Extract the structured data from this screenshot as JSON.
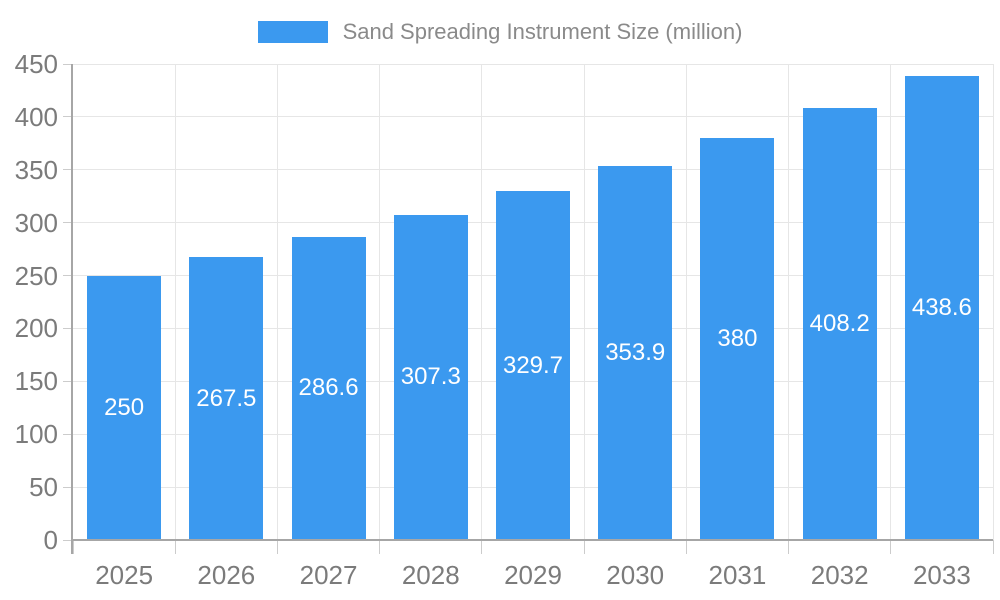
{
  "legend": {
    "label": "Sand Spreading Instrument Size (million)"
  },
  "colors": {
    "bar": "#3b99ef",
    "grid": "#e6e6e6",
    "axis": "#a6a6a6",
    "tick": "#cccccc",
    "axis_text": "#7b7b7b",
    "title_text": "#8a8a8a",
    "value_text": "#ffffff",
    "background": "#ffffff"
  },
  "chart_data": {
    "type": "bar",
    "title": "Sand Spreading Instrument Size (million)",
    "categories": [
      "2025",
      "2026",
      "2027",
      "2028",
      "2029",
      "2030",
      "2031",
      "2032",
      "2033"
    ],
    "values": [
      250,
      267.5,
      286.6,
      307.3,
      329.7,
      353.9,
      380,
      408.2,
      438.6
    ],
    "value_labels": [
      "250",
      "267.5",
      "286.6",
      "307.3",
      "329.7",
      "353.9",
      "380",
      "408.2",
      "438.6"
    ],
    "xlabel": "",
    "ylabel": "",
    "ylim": [
      0,
      450
    ],
    "ytick_step": 50,
    "ytick_labels": [
      "0",
      "50",
      "100",
      "150",
      "200",
      "250",
      "300",
      "350",
      "400",
      "450"
    ],
    "grid": true,
    "legend_position": "top"
  }
}
